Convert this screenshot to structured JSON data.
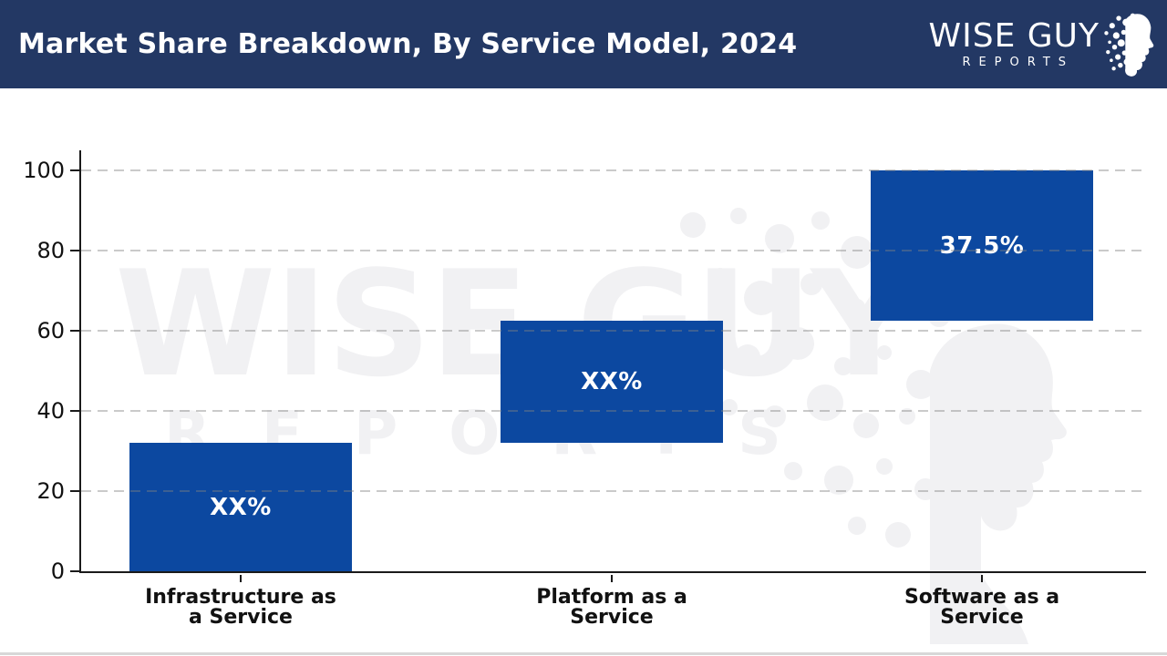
{
  "header": {
    "title": "Market Share Breakdown, By Service Model, 2024",
    "logo_line1": "WISE GUY",
    "logo_line2": "REPORTS"
  },
  "watermark": {
    "line1": "WISE GUY",
    "line2": "REPORTS"
  },
  "colors": {
    "header_bg": "#233864",
    "bar": "#0c48a0",
    "axis": "#1a1a1a",
    "watermark": "#f1f1f3",
    "text": "#111111",
    "on_bar": "#ffffff"
  },
  "chart_data": {
    "type": "bar",
    "variant": "floating-waterfall",
    "title": "Market Share Breakdown, By Service Model, 2024",
    "xlabel": "",
    "ylabel": "",
    "categories": [
      "Infrastructure as a Service",
      "Platform as a Service",
      "Software as a Service"
    ],
    "category_label_lines": [
      [
        "Infrastructure as",
        "a Service"
      ],
      [
        "Platform as a",
        "Service"
      ],
      [
        "Software as a",
        "Service"
      ]
    ],
    "segments": [
      {
        "category": "Infrastructure as a Service",
        "start": 0,
        "end": 32,
        "label": "XX%"
      },
      {
        "category": "Platform as a Service",
        "start": 32,
        "end": 62.5,
        "label": "XX%"
      },
      {
        "category": "Software as a Service",
        "start": 62.5,
        "end": 100,
        "label": "37.5%"
      }
    ],
    "yticks": [
      0,
      20,
      40,
      60,
      80,
      100
    ],
    "ylim": [
      0,
      105
    ],
    "grid": {
      "axis": "y",
      "style": "dashed",
      "on": true,
      "above_bars": true
    },
    "legend": "none",
    "bar_color": "#0c48a0",
    "bar_label_color": "#ffffff"
  }
}
